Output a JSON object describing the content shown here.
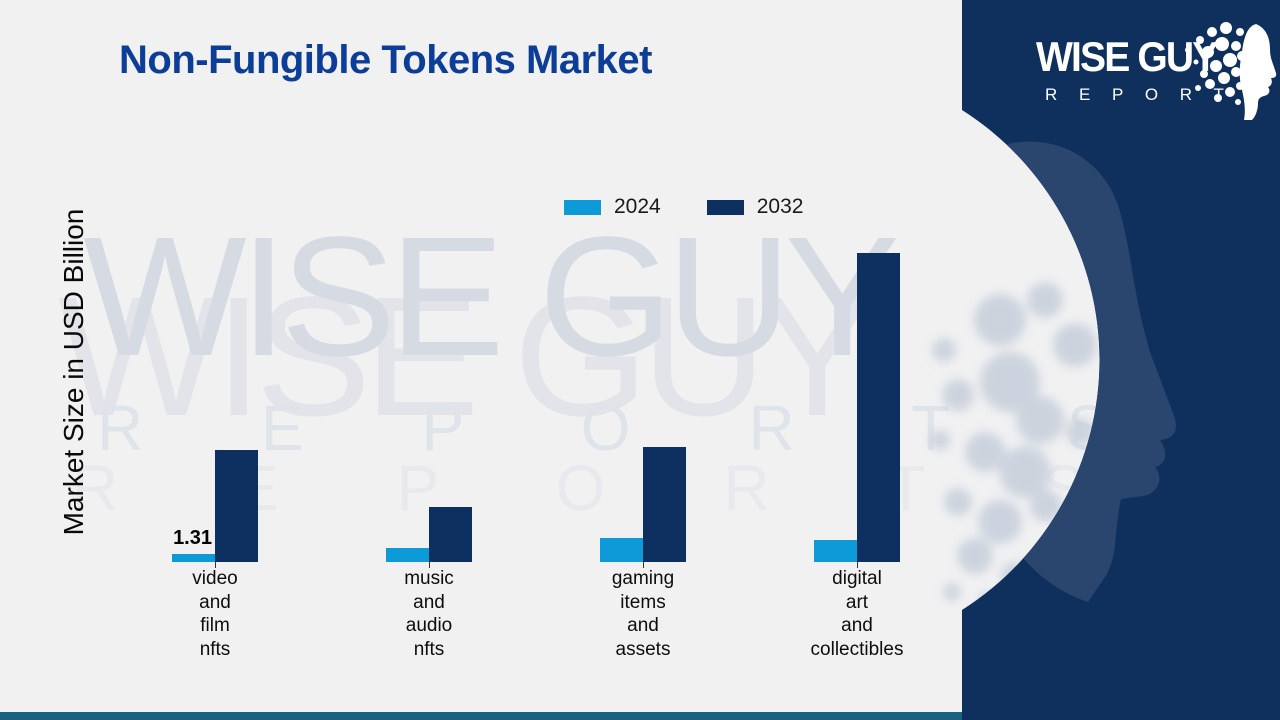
{
  "header": {
    "title": "Non-Fungible Tokens Market",
    "title_color": "#0c3e98"
  },
  "brand": {
    "logo_line1": "WISE GUY",
    "logo_line2": "R E P O R T S",
    "watermark_line1": "WISE GUY",
    "watermark_line2": "R E P O R T S",
    "panel_color": "#0f2f5d",
    "face_silhouette_color": "#2a466f",
    "brain_dots_color": "#c9d0dc",
    "accent_strip_color": "#19617f"
  },
  "chart_data": {
    "type": "bar",
    "title": "Non-Fungible Tokens Market",
    "xlabel": "",
    "ylabel": "Market Size in USD Billion",
    "categories": [
      "video and film nfts",
      "music and audio nfts",
      "gaming items and assets",
      "digital art and collectibles"
    ],
    "series": [
      {
        "name": "2024",
        "color": "#0e9ad8",
        "values": [
          1.31,
          2.3,
          3.9,
          3.6
        ]
      },
      {
        "name": "2032",
        "color": "#0e3060",
        "values": [
          18.3,
          9.0,
          18.8,
          50.6
        ]
      }
    ],
    "data_labels": [
      "1.31",
      "",
      "",
      ""
    ],
    "ylim": [
      0,
      55
    ],
    "grid": false,
    "legend_position": "top",
    "axis_ticks_visible": false
  }
}
